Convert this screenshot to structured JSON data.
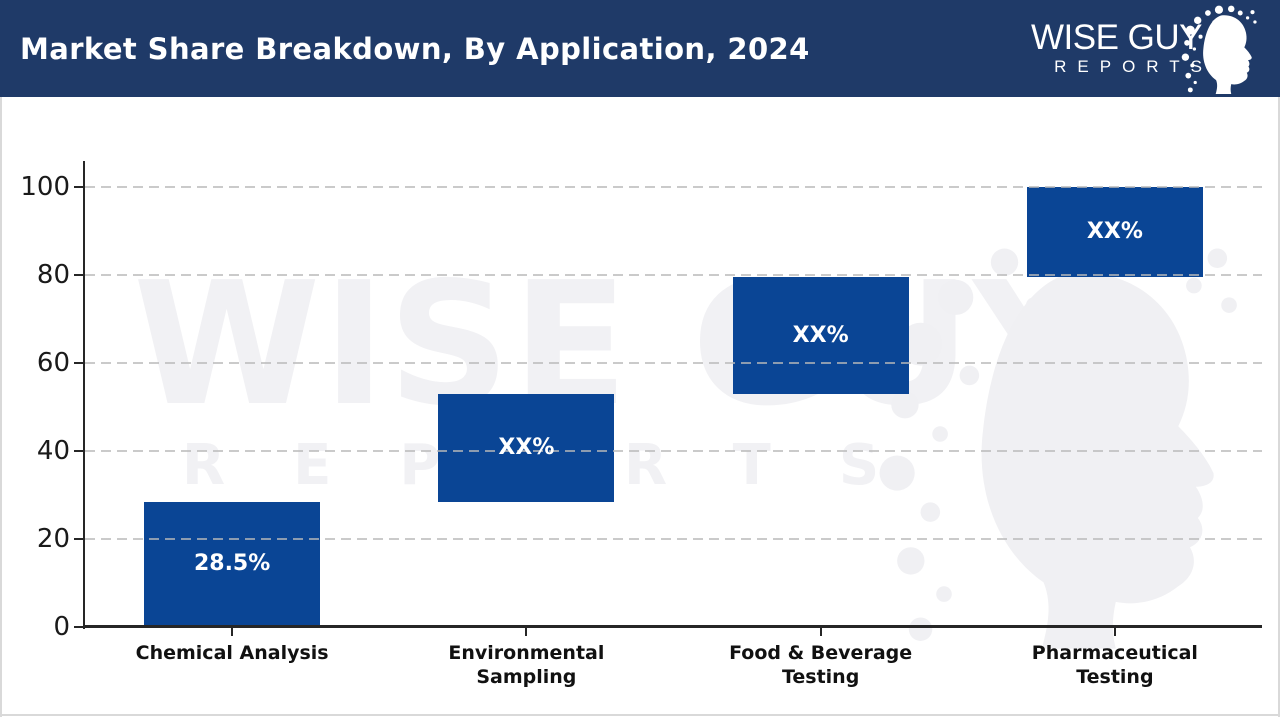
{
  "header": {
    "title": "Market Share Breakdown, By Application, 2024",
    "logo": {
      "line1": "WISE GUY",
      "line2": "REPORTS"
    }
  },
  "watermark": {
    "line1": "WISE GUY",
    "line2": "REPORTS"
  },
  "colors": {
    "header_bg": "#1f3a68",
    "bar": "#0a4595",
    "axis": "#262626",
    "tick_label": "#1a1a1a",
    "grid": "#c9c9c9",
    "value_label": "#ffffff",
    "watermark": "#f1f1f4",
    "frame_border": "#d9d9d9"
  },
  "chart_data": {
    "type": "bar",
    "subtype": "waterfall",
    "title": "Market Share Breakdown, By Application, 2024",
    "categories": [
      "Chemical Analysis",
      "Environmental Sampling",
      "Food & Beverage Testing",
      "Pharmaceutical Testing"
    ],
    "segments": [
      {
        "category": "Chemical Analysis",
        "start": 0,
        "end": 28.5,
        "value_label": "28.5%"
      },
      {
        "category": "Environmental Sampling",
        "start": 28.5,
        "end": 53,
        "value_label": "XX%"
      },
      {
        "category": "Food & Beverage Testing",
        "start": 53,
        "end": 79.5,
        "value_label": "XX%"
      },
      {
        "category": "Pharmaceutical Testing",
        "start": 79.5,
        "end": 100,
        "value_label": "XX%"
      }
    ],
    "xlabel": "",
    "ylabel": "",
    "ylim": [
      0,
      100
    ],
    "yticks": [
      0,
      20,
      40,
      60,
      80,
      100
    ],
    "grid": "horizontal-dashed",
    "legend": "none"
  }
}
